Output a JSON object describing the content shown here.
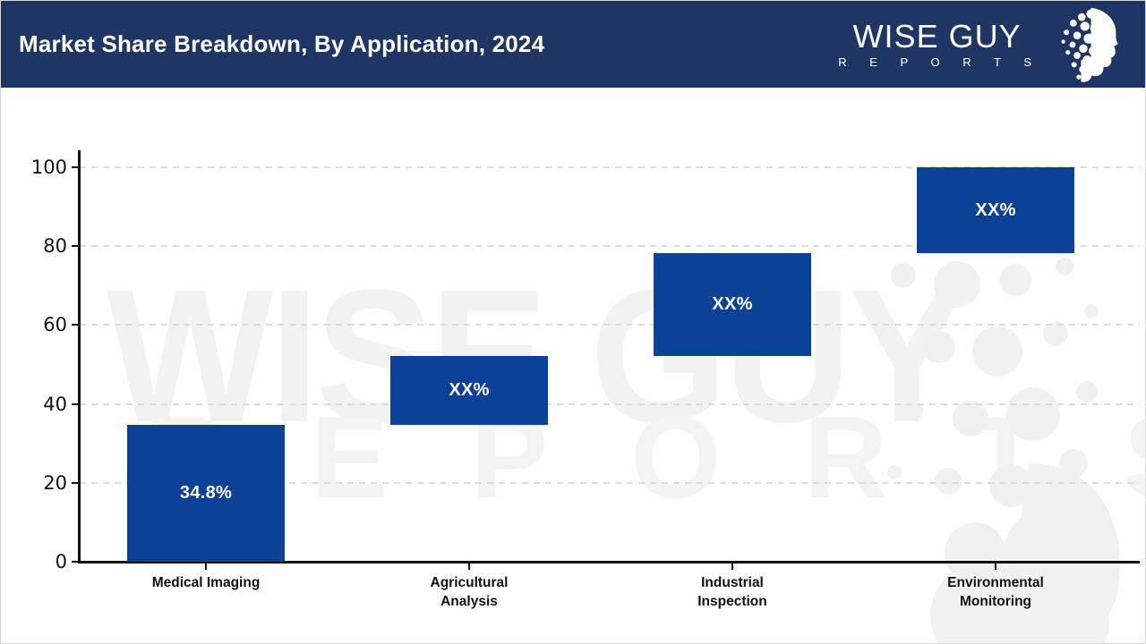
{
  "header": {
    "title": "Market Share Breakdown, By Application, 2024",
    "brand_name": "WISE GUY",
    "brand_sub": "R E P O R T S",
    "bg_color": "#1f3564"
  },
  "watermark": {
    "line1": "WISE GUY",
    "line2": "REPORTS",
    "color": "#f2f2f2"
  },
  "chart_data": {
    "type": "bar",
    "subtype": "waterfall",
    "title": "Market Share Breakdown, By Application, 2024",
    "categories": [
      "Medical Imaging",
      "Agricultural Analysis",
      "Industrial Inspection",
      "Environmental Monitoring"
    ],
    "segments": [
      {
        "category": "Medical Imaging",
        "category_lines": [
          "Medical Imaging"
        ],
        "start": 0,
        "end": 34.8,
        "label": "34.8%"
      },
      {
        "category": "Agricultural Analysis",
        "category_lines": [
          "Agricultural",
          "Analysis"
        ],
        "start": 34.8,
        "end": 52.2,
        "label": "XX%"
      },
      {
        "category": "Industrial Inspection",
        "category_lines": [
          "Industrial",
          "Inspection"
        ],
        "start": 52.2,
        "end": 78.2,
        "label": "XX%"
      },
      {
        "category": "Environmental Monitoring",
        "category_lines": [
          "Environmental",
          "Monitoring"
        ],
        "start": 78.2,
        "end": 100,
        "label": "XX%"
      }
    ],
    "y_ticks": [
      0,
      20,
      40,
      60,
      80,
      100
    ],
    "ylim": [
      0,
      100
    ],
    "xlabel": "",
    "ylabel": "",
    "grid": "dashed-horizontal",
    "legend": "none",
    "bar_color": "#0b4197",
    "bar_label_color": "#ffffff",
    "axis_color": "#111111",
    "gridline_color": "#dcdcdc"
  }
}
